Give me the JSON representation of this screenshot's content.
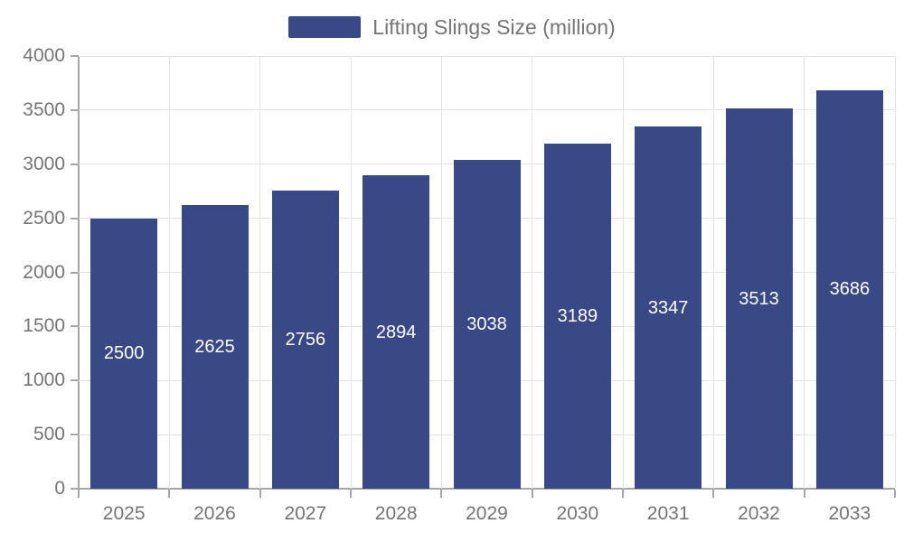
{
  "legend": {
    "label": "Lifting Slings Size (million)"
  },
  "colors": {
    "background": "#ffffff",
    "bar": "#394986",
    "axis_line": "#a6a6a6",
    "grid_line": "#e3e3e3",
    "tick_label": "#757575",
    "legend_text": "#757575",
    "value_label": "#ffffff"
  },
  "chart_data": {
    "type": "bar",
    "title": "Lifting Slings Size (million)",
    "categories": [
      "2025",
      "2026",
      "2027",
      "2028",
      "2029",
      "2030",
      "2031",
      "2032",
      "2033"
    ],
    "values": [
      2500,
      2625,
      2756,
      2894,
      3038,
      3189,
      3347,
      3513,
      3686
    ],
    "series_name": "Lifting Slings Size (million)",
    "xlabel": "",
    "ylabel": "",
    "ylim": [
      0,
      4000
    ],
    "yticks": [
      0,
      500,
      1000,
      1500,
      2000,
      2500,
      3000,
      3500,
      4000
    ],
    "grid": true,
    "legend_position": "top",
    "bar_label_position": "inside-center"
  }
}
